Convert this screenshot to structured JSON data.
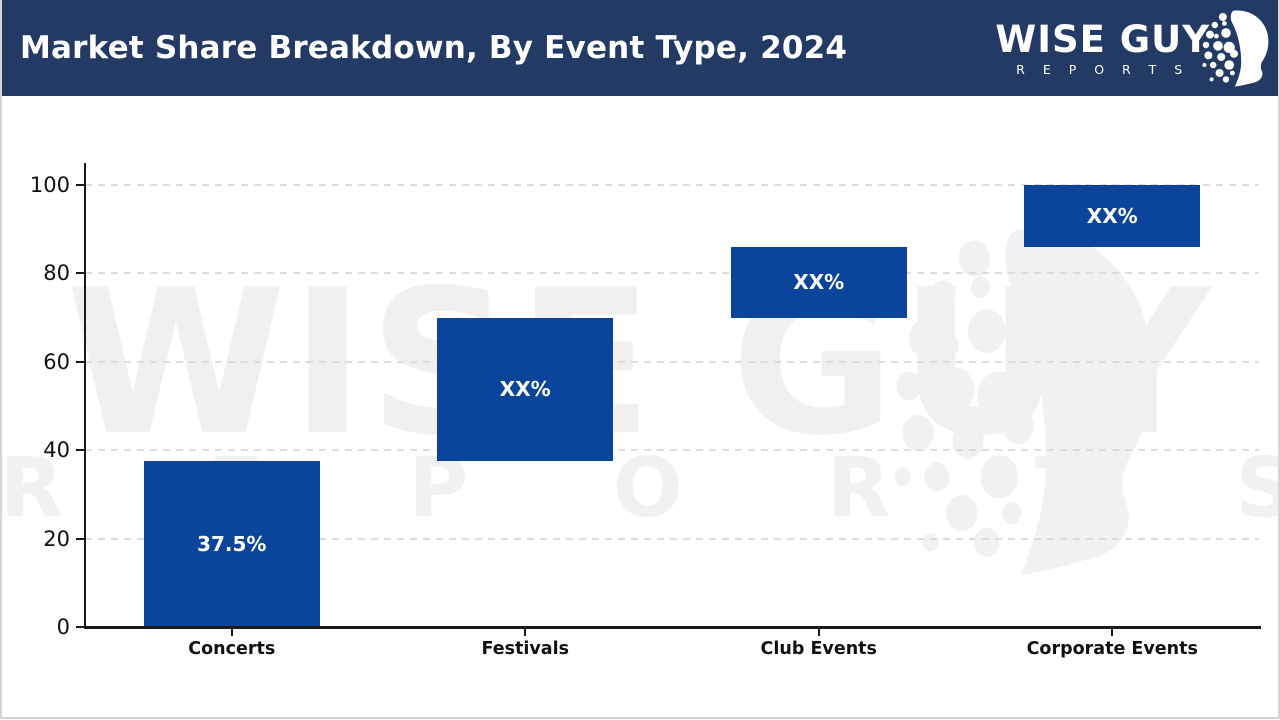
{
  "header": {
    "title": "Market Share Breakdown, By Event Type, 2024",
    "bg_color": "#223A64",
    "text_color": "#FFFFFF",
    "logo": {
      "line1": "WISE GUY",
      "line2": "R E P O R T S"
    }
  },
  "watermark": {
    "line1": "WISE GUY",
    "line2": "R E P O R T S"
  },
  "chart_data": {
    "type": "bar",
    "subtype": "floating-waterfall",
    "title": "Market Share Breakdown, By Event Type, 2024",
    "categories": [
      "Concerts",
      "Festivals",
      "Club Events",
      "Corporate Events"
    ],
    "segments": [
      {
        "category": "Concerts",
        "start": 0,
        "end": 37.5,
        "value": 37.5,
        "label": "37.5%"
      },
      {
        "category": "Festivals",
        "start": 37.5,
        "end": 70,
        "value": 32.5,
        "label": "XX%"
      },
      {
        "category": "Club Events",
        "start": 70,
        "end": 86,
        "value": 16,
        "label": "XX%"
      },
      {
        "category": "Corporate Events",
        "start": 86,
        "end": 100,
        "value": 14,
        "label": "XX%"
      }
    ],
    "yticks": [
      0,
      20,
      40,
      60,
      80,
      100
    ],
    "ylim": [
      0,
      105
    ],
    "xlabel": "",
    "ylabel": "",
    "legend": "none",
    "grid": "horizontal-dashed",
    "bar_color": "#0B459B",
    "bar_label_color": "#FFFFFF",
    "axis_color": "#1A1A1A",
    "gridline_color": "#DDDDDD"
  }
}
